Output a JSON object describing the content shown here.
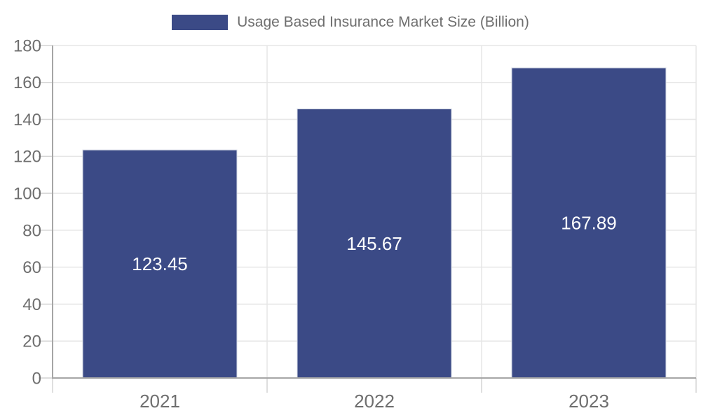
{
  "chart_data": {
    "type": "bar",
    "title": "Usage Based Insurance Market Size (Billion)",
    "legend": {
      "position": "top",
      "entries": [
        "Usage Based Insurance Market Size (Billion)"
      ]
    },
    "categories": [
      "2021",
      "2022",
      "2023"
    ],
    "values": [
      123.45,
      145.67,
      167.89
    ],
    "value_label_decimals": 2,
    "xlabel": "",
    "ylabel": "",
    "ylim": [
      0,
      180
    ],
    "yticks": [
      0,
      20,
      40,
      60,
      80,
      100,
      120,
      140,
      160,
      180
    ],
    "grid": true,
    "colors": {
      "bar": "#3B4A86",
      "bar_edge": "#d3d8e4",
      "grid": "#e6e6e6",
      "tick": "#d4d4d4",
      "axis": "#a6a6a6",
      "text": "#6e6e6e",
      "value_text": "#ffffff",
      "background": "#ffffff"
    }
  }
}
